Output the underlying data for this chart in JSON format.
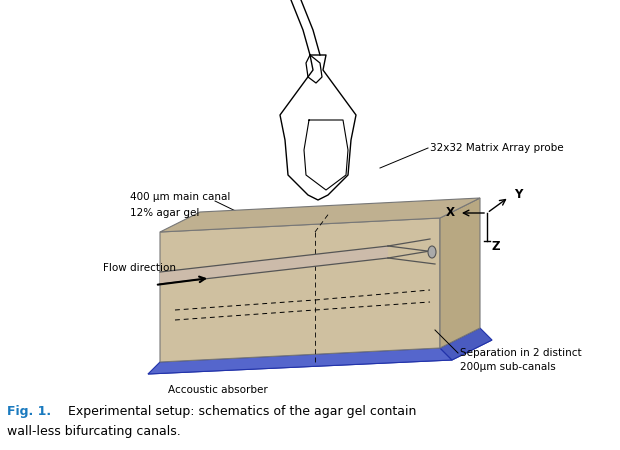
{
  "title_fig": "Fig. 1.",
  "caption": "    Experimental setup: schematics of the agar gel contain",
  "caption2": "wall-less bifurcating canals.",
  "fig_color": "#1a7abf",
  "caption_dark": "#000000",
  "box_face_front": "#cfc0a0",
  "box_face_top": "#bfb090",
  "box_face_right": "#b8a882",
  "blue_color": "#4455bb",
  "blue_front": "#5566cc",
  "background": "#ffffff",
  "annotations": {
    "probe_label": "32x32 Matrix Array probe",
    "main_canal": "400 μm main canal",
    "agar_gel": "12% agar gel",
    "flow_dir": "Flow direction",
    "acoustic": "Accoustic absorber",
    "separation": "Separation in 2 distinct\n200μm sub-canals"
  },
  "axes": {
    "X": "X",
    "Y": "Y",
    "Z": "Z"
  }
}
